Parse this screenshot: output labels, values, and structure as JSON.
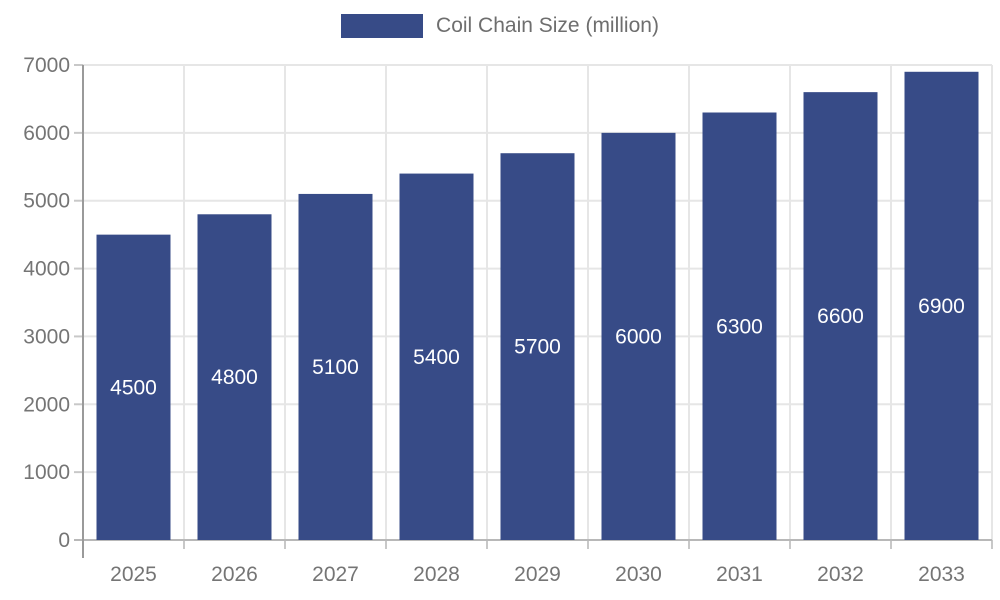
{
  "chart_data": {
    "type": "bar",
    "title": "",
    "legend": "Coil Chain Size (million)",
    "legend_position": "top-center",
    "categories": [
      "2025",
      "2026",
      "2027",
      "2028",
      "2029",
      "2030",
      "2031",
      "2032",
      "2033"
    ],
    "series": [
      {
        "name": "Coil Chain Size (million)",
        "values": [
          4500,
          4800,
          5100,
          5400,
          5700,
          6000,
          6300,
          6600,
          6900
        ]
      }
    ],
    "xlabel": "",
    "ylabel": "",
    "ylim": [
      0,
      7000
    ],
    "yticks": [
      0,
      1000,
      2000,
      3000,
      4000,
      5000,
      6000,
      7000
    ],
    "grid": true,
    "bar_labels_inside": true,
    "colors": {
      "bar": "#374B87",
      "bar_label": "#ffffff",
      "gridline": "#e6e6e6",
      "tick_mark": "#c8c8c8",
      "y_axis_line": "#9a9a9a",
      "x_axis_line": "#b8b8b8",
      "axis_text": "#757575",
      "legend_text": "#6e6e6e",
      "background": "#ffffff"
    }
  }
}
